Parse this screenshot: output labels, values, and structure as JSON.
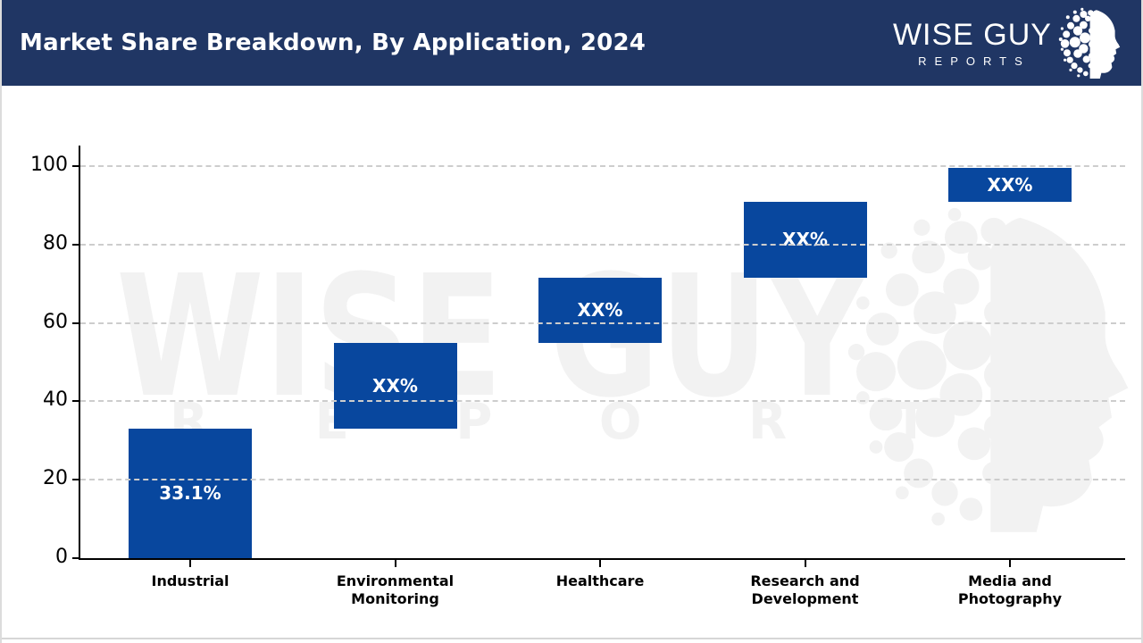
{
  "header": {
    "title": "Market Share Breakdown, By Application, 2024",
    "background": "#203664",
    "logo": {
      "line1": "WISE GUY",
      "line2": "REPORTS"
    }
  },
  "watermark": {
    "line1": "WISE GUY",
    "line2": "R E P O R T S"
  },
  "chart_data": {
    "type": "bar",
    "variant": "waterfall",
    "title": "Market Share Breakdown, By Application, 2024",
    "xlabel": "",
    "ylabel": "",
    "ylim": [
      0,
      105
    ],
    "y_ticks": [
      0,
      20,
      40,
      60,
      80,
      100
    ],
    "grid": "horizontal-dashed",
    "legend": "none",
    "categories": [
      {
        "label": "Industrial",
        "lines": [
          "Industrial"
        ]
      },
      {
        "label": "Environmental Monitoring",
        "lines": [
          "Environmental",
          "Monitoring"
        ]
      },
      {
        "label": "Healthcare",
        "lines": [
          "Healthcare"
        ]
      },
      {
        "label": "Research and Development",
        "lines": [
          "Research and",
          "Development"
        ]
      },
      {
        "label": "Media and Photography",
        "lines": [
          "Media and",
          "Photography"
        ]
      }
    ],
    "segments": [
      {
        "category": "Industrial",
        "start": 0,
        "end": 33.1,
        "size": 33.1,
        "data_label": "33.1%"
      },
      {
        "category": "Environmental Monitoring",
        "start": 33.1,
        "end": 55.0,
        "size": 21.9,
        "data_label": "XX%"
      },
      {
        "category": "Healthcare",
        "start": 55.0,
        "end": 71.5,
        "size": 16.5,
        "data_label": "XX%"
      },
      {
        "category": "Research and Development",
        "start": 71.5,
        "end": 91.0,
        "size": 19.5,
        "data_label": "XX%"
      },
      {
        "category": "Media and Photography",
        "start": 91.0,
        "end": 99.5,
        "size": 8.5,
        "data_label": "XX%"
      }
    ],
    "colors": {
      "bar": "#08479e",
      "bar_label": "#ffffff",
      "grid": "#cdcdcd",
      "axis": "#000000",
      "tick_label": "#000000",
      "header": "#203664",
      "watermark": "#f2f2f2"
    }
  }
}
